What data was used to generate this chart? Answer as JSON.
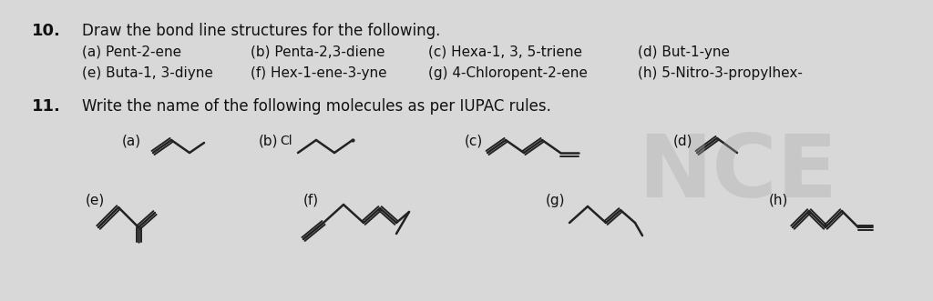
{
  "background_color": "#d8d8d8",
  "q10_number": "10.",
  "q10_text": "Draw the bond line structures for the following.",
  "q10_items_row1": [
    "(a) Pent-2-ene",
    "(b) Penta-2,3-diene",
    "(c) Hexa-1, 3, 5-triene",
    "(d) But-1-yne"
  ],
  "q10_items_row2": [
    "(e) Buta-1, 3-diyne",
    "(f) Hex-1-ene-3-yne",
    "(g) 4-Chloropent-2-ene",
    "(h) 5-Nitro-3-propylhex-"
  ],
  "q11_number": "11.",
  "q11_text": "Write the name of the following molecules as per IUPAC rules.",
  "labels_row1": [
    "(a)",
    "(b)",
    "(c)",
    "(d)"
  ],
  "labels_row2": [
    "(e)",
    "(f)",
    "(g)",
    "(h)"
  ],
  "text_color": "#111111",
  "mol_color": "#222222",
  "watermark_color": "#aaaaaa",
  "font_size_q": 13,
  "font_size_item": 11,
  "font_size_label": 11,
  "lw": 1.8,
  "lw_double": 1.4
}
